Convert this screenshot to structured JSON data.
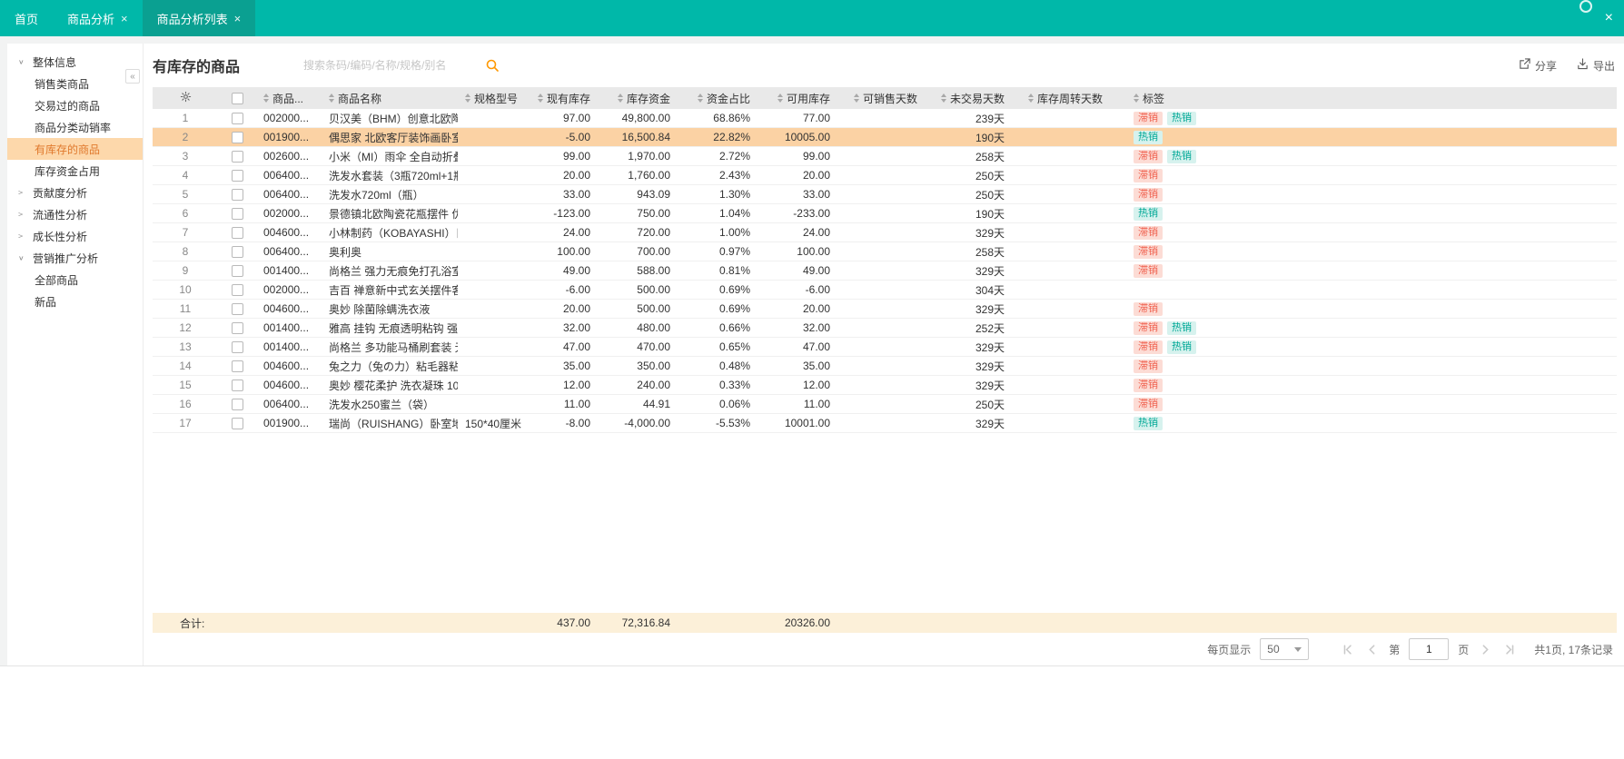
{
  "topbar": {
    "tabs": [
      {
        "label": "首页",
        "closable": false,
        "active": false
      },
      {
        "label": "商品分析",
        "closable": true,
        "active": false
      },
      {
        "label": "商品分析列表",
        "closable": true,
        "active": true
      }
    ],
    "window_close_glyph": "×",
    "tab_close_glyph": "×"
  },
  "sidebar": {
    "collapse_glyph": "«",
    "items": [
      {
        "label": "整体信息",
        "type": "group",
        "expanded": true,
        "active": false
      },
      {
        "label": "销售类商品",
        "type": "child",
        "active": false
      },
      {
        "label": "交易过的商品",
        "type": "child",
        "active": false
      },
      {
        "label": "商品分类动销率",
        "type": "child",
        "active": false
      },
      {
        "label": "有库存的商品",
        "type": "child",
        "active": true
      },
      {
        "label": "库存资金占用",
        "type": "child",
        "active": false
      },
      {
        "label": "贡献度分析",
        "type": "group",
        "expanded": false,
        "active": false
      },
      {
        "label": "流通性分析",
        "type": "group",
        "expanded": false,
        "active": false
      },
      {
        "label": "成长性分析",
        "type": "group",
        "expanded": false,
        "active": false
      },
      {
        "label": "营销推广分析",
        "type": "group",
        "expanded": true,
        "active": false
      },
      {
        "label": "全部商品",
        "type": "child",
        "active": false
      },
      {
        "label": "新品",
        "type": "child",
        "active": false
      }
    ]
  },
  "main": {
    "title": "有库存的商品",
    "search_placeholder": "搜索条码/编码/名称/规格/别名",
    "share_label": "分享",
    "export_label": "导出"
  },
  "table": {
    "columns": [
      "商品...",
      "商品名称",
      "规格型号",
      "现有库存",
      "库存资金",
      "资金占比",
      "可用库存",
      "可销售天数",
      "未交易天数",
      "库存周转天数",
      "标签"
    ],
    "rows": [
      {
        "index": "1",
        "code": "002000...",
        "name": "贝汉美（BHM）创意北欧陶",
        "spec": "",
        "stock": "97.00",
        "fund": "49,800.00",
        "ratio": "68.86%",
        "available": "77.00",
        "sellable_days": "",
        "no_trade_days": "239天",
        "turnover_days": "",
        "tags": [
          "滞销",
          "热销"
        ],
        "highlighted": false
      },
      {
        "index": "2",
        "code": "001900...",
        "name": "偶思家 北欧客厅装饰画卧室",
        "spec": "",
        "stock": "-5.00",
        "fund": "16,500.84",
        "ratio": "22.82%",
        "available": "10005.00",
        "sellable_days": "",
        "no_trade_days": "190天",
        "turnover_days": "",
        "tags": [
          "热销"
        ],
        "highlighted": true
      },
      {
        "index": "3",
        "code": "002600...",
        "name": "小米（MI）雨伞 全自动折叠",
        "spec": "",
        "stock": "99.00",
        "fund": "1,970.00",
        "ratio": "2.72%",
        "available": "99.00",
        "sellable_days": "",
        "no_trade_days": "258天",
        "turnover_days": "",
        "tags": [
          "滞销",
          "热销"
        ],
        "highlighted": false
      },
      {
        "index": "4",
        "code": "006400...",
        "name": "洗发水套装（3瓶720ml+1瓶",
        "spec": "",
        "stock": "20.00",
        "fund": "1,760.00",
        "ratio": "2.43%",
        "available": "20.00",
        "sellable_days": "",
        "no_trade_days": "250天",
        "turnover_days": "",
        "tags": [
          "滞销"
        ],
        "highlighted": false
      },
      {
        "index": "5",
        "code": "006400...",
        "name": "洗发水720ml（瓶）",
        "spec": "",
        "stock": "33.00",
        "fund": "943.09",
        "ratio": "1.30%",
        "available": "33.00",
        "sellable_days": "",
        "no_trade_days": "250天",
        "turnover_days": "",
        "tags": [
          "滞销"
        ],
        "highlighted": false
      },
      {
        "index": "6",
        "code": "002000...",
        "name": "景德镇北欧陶瓷花瓶摆件 优",
        "spec": "",
        "stock": "-123.00",
        "fund": "750.00",
        "ratio": "1.04%",
        "available": "-233.00",
        "sellable_days": "",
        "no_trade_days": "190天",
        "turnover_days": "",
        "tags": [
          "热销"
        ],
        "highlighted": false
      },
      {
        "index": "7",
        "code": "004600...",
        "name": "小林制药（KOBAYASHI）日",
        "spec": "",
        "stock": "24.00",
        "fund": "720.00",
        "ratio": "1.00%",
        "available": "24.00",
        "sellable_days": "",
        "no_trade_days": "329天",
        "turnover_days": "",
        "tags": [
          "滞销"
        ],
        "highlighted": false
      },
      {
        "index": "8",
        "code": "006400...",
        "name": "奥利奥",
        "spec": "",
        "stock": "100.00",
        "fund": "700.00",
        "ratio": "0.97%",
        "available": "100.00",
        "sellable_days": "",
        "no_trade_days": "258天",
        "turnover_days": "",
        "tags": [
          "滞销"
        ],
        "highlighted": false
      },
      {
        "index": "9",
        "code": "001400...",
        "name": "尚格兰 强力无痕免打孔浴室",
        "spec": "",
        "stock": "49.00",
        "fund": "588.00",
        "ratio": "0.81%",
        "available": "49.00",
        "sellable_days": "",
        "no_trade_days": "329天",
        "turnover_days": "",
        "tags": [
          "滞销"
        ],
        "highlighted": false
      },
      {
        "index": "10",
        "code": "002000...",
        "name": "吉百 禅意新中式玄关摆件客",
        "spec": "",
        "stock": "-6.00",
        "fund": "500.00",
        "ratio": "0.69%",
        "available": "-6.00",
        "sellable_days": "",
        "no_trade_days": "304天",
        "turnover_days": "",
        "tags": [],
        "highlighted": false
      },
      {
        "index": "11",
        "code": "004600...",
        "name": "奥妙 除菌除螨洗衣液",
        "spec": "",
        "stock": "20.00",
        "fund": "500.00",
        "ratio": "0.69%",
        "available": "20.00",
        "sellable_days": "",
        "no_trade_days": "329天",
        "turnover_days": "",
        "tags": [
          "滞销"
        ],
        "highlighted": false
      },
      {
        "index": "12",
        "code": "001400...",
        "name": "雅高 挂钩 无痕透明粘钩 强",
        "spec": "",
        "stock": "32.00",
        "fund": "480.00",
        "ratio": "0.66%",
        "available": "32.00",
        "sellable_days": "",
        "no_trade_days": "252天",
        "turnover_days": "",
        "tags": [
          "滞销",
          "热销"
        ],
        "highlighted": false
      },
      {
        "index": "13",
        "code": "001400...",
        "name": "尚格兰 多功能马桶刷套装 无",
        "spec": "",
        "stock": "47.00",
        "fund": "470.00",
        "ratio": "0.65%",
        "available": "47.00",
        "sellable_days": "",
        "no_trade_days": "329天",
        "turnover_days": "",
        "tags": [
          "滞销",
          "热销"
        ],
        "highlighted": false
      },
      {
        "index": "14",
        "code": "004600...",
        "name": "兔之力（兔の力）粘毛器粘",
        "spec": "",
        "stock": "35.00",
        "fund": "350.00",
        "ratio": "0.48%",
        "available": "35.00",
        "sellable_days": "",
        "no_trade_days": "329天",
        "turnover_days": "",
        "tags": [
          "滞销"
        ],
        "highlighted": false
      },
      {
        "index": "15",
        "code": "004600...",
        "name": "奥妙 樱花柔护 洗衣凝珠 10",
        "spec": "",
        "stock": "12.00",
        "fund": "240.00",
        "ratio": "0.33%",
        "available": "12.00",
        "sellable_days": "",
        "no_trade_days": "329天",
        "turnover_days": "",
        "tags": [
          "滞销"
        ],
        "highlighted": false
      },
      {
        "index": "16",
        "code": "006400...",
        "name": "洗发水250蜜兰（袋）",
        "spec": "",
        "stock": "11.00",
        "fund": "44.91",
        "ratio": "0.06%",
        "available": "11.00",
        "sellable_days": "",
        "no_trade_days": "250天",
        "turnover_days": "",
        "tags": [
          "滞销"
        ],
        "highlighted": false
      },
      {
        "index": "17",
        "code": "001900...",
        "name": "瑞尚（RUISHANG）卧室地",
        "spec": "150*40厘米",
        "stock": "-8.00",
        "fund": "-4,000.00",
        "ratio": "-5.53%",
        "available": "10001.00",
        "sellable_days": "",
        "no_trade_days": "329天",
        "turnover_days": "",
        "tags": [
          "热销"
        ],
        "highlighted": false
      }
    ],
    "summary": {
      "label": "合计:",
      "stock": "437.00",
      "fund": "72,316.84",
      "available": "20326.00"
    },
    "tags_legend": {
      "滞销": {
        "text": "#f0614f",
        "bg": "#fcdcd5"
      },
      "热销": {
        "text": "#00a896",
        "bg": "#d7f2ee"
      }
    }
  },
  "pagination": {
    "page_size_label": "每页显示",
    "page_size": "50",
    "page_label_prefix": "第",
    "page_label_suffix": "页",
    "current_page": "1",
    "total_text": "共1页, 17条记录"
  },
  "colors": {
    "topbar_bg": "#00b8a9",
    "active_tab_bg": "#0aa091",
    "sidebar_active_bg": "#fdd8ab",
    "sidebar_active_text": "#e0792c",
    "highlight_row_bg": "#fbd2a4",
    "summary_row_bg": "#fcf0d9",
    "search_icon": "#ff9800",
    "table_header_bg": "#e9e9e9"
  }
}
